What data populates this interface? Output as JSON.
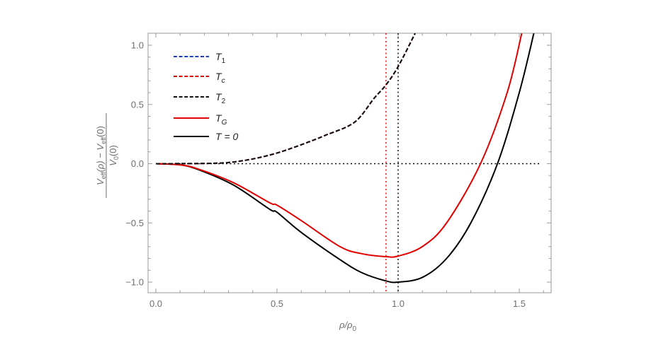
{
  "chart_data": {
    "type": "line",
    "title": "",
    "xlabel": "ρ/ρ0",
    "ylabel": "(V_eff(ρ) − V_eff(0)) / V_0(0)",
    "xlim": [
      -0.03,
      1.63
    ],
    "ylim": [
      -1.09,
      1.1
    ],
    "x_ticks": [
      0.0,
      0.5,
      1.0,
      1.5
    ],
    "x_tick_labels": [
      "0.0",
      "0.5",
      "1.0",
      "1.5"
    ],
    "y_ticks": [
      -1.0,
      -0.5,
      0.0,
      0.5,
      1.0
    ],
    "y_tick_labels": [
      "−1.0",
      "−0.5",
      "0.0",
      "0.5",
      "1.0"
    ],
    "grid": false,
    "legend_position": "upper-left",
    "series": [
      {
        "name": "T1",
        "label_main": "T",
        "label_sub": "1",
        "color": "#1f3fcf",
        "style": "dashed",
        "x": [
          0,
          0.2,
          0.3,
          0.4,
          0.5,
          0.6,
          0.7,
          0.82,
          0.9,
          0.95,
          1.0,
          1.07
        ],
        "y": [
          0,
          0.002,
          0.01,
          0.04,
          0.09,
          0.16,
          0.24,
          0.35,
          0.55,
          0.666,
          0.82,
          1.1
        ]
      },
      {
        "name": "Tc",
        "label_main": "T",
        "label_sub": "c",
        "color": "#d40000",
        "style": "dashed",
        "x": [
          0,
          0.2,
          0.3,
          0.4,
          0.5,
          0.6,
          0.7,
          0.82,
          0.9,
          0.95,
          1.0,
          1.07
        ],
        "y": [
          0,
          0.002,
          0.01,
          0.04,
          0.09,
          0.16,
          0.24,
          0.35,
          0.55,
          0.666,
          0.82,
          1.1
        ]
      },
      {
        "name": "T2",
        "label_main": "T",
        "label_sub": "2",
        "color": "#111111",
        "style": "dashed",
        "x": [
          0,
          0.2,
          0.3,
          0.4,
          0.5,
          0.6,
          0.7,
          0.82,
          0.9,
          0.95,
          1.0,
          1.07
        ],
        "y": [
          0,
          0.002,
          0.01,
          0.04,
          0.09,
          0.16,
          0.24,
          0.35,
          0.55,
          0.666,
          0.82,
          1.1
        ]
      },
      {
        "name": "TG",
        "label_main": "T",
        "label_sub": "G",
        "color": "#e00000",
        "style": "solid",
        "x": [
          0,
          0.1,
          0.175,
          0.32,
          0.47,
          0.5,
          0.6,
          0.76,
          0.85,
          0.95,
          1.0,
          1.1,
          1.2,
          1.34,
          1.45,
          1.51
        ],
        "y": [
          0,
          -0.01,
          -0.045,
          -0.16,
          -0.33,
          -0.35,
          -0.48,
          -0.7,
          -0.76,
          -0.785,
          -0.78,
          -0.7,
          -0.5,
          0,
          0.6,
          1.1
        ]
      },
      {
        "name": "T = 0",
        "label_main": "T = 0",
        "label_sub": "",
        "color": "#000000",
        "style": "solid",
        "x": [
          0,
          0.1,
          0.175,
          0.32,
          0.47,
          0.5,
          0.6,
          0.76,
          0.85,
          0.95,
          1.0,
          1.1,
          1.2,
          1.3,
          1.41,
          1.5,
          1.56
        ],
        "y": [
          0,
          -0.01,
          -0.05,
          -0.18,
          -0.385,
          -0.41,
          -0.58,
          -0.81,
          -0.92,
          -0.99,
          -1.0,
          -0.96,
          -0.8,
          -0.5,
          0,
          0.6,
          1.1
        ]
      }
    ],
    "reference_lines": [
      {
        "orientation": "horizontal",
        "value": 0.0,
        "from": 0.0,
        "to": 1.59,
        "color": "#000000",
        "style": "dotted"
      },
      {
        "orientation": "vertical",
        "value": 0.95,
        "color": "#e00000",
        "style": "dotted"
      },
      {
        "orientation": "vertical",
        "value": 1.0,
        "color": "#000000",
        "style": "dotted"
      }
    ]
  },
  "labels": {
    "x_axis": {
      "main": "ρ/ρ",
      "sub": "0"
    },
    "y_axis": {
      "numerator": "V",
      "numerator_sub1": "eff",
      "numerator_mid": "(ρ) − V",
      "numerator_sub2": "eff",
      "numerator_end": "(0)",
      "denominator": "V",
      "denominator_sub": "0",
      "denominator_end": "(0)"
    }
  }
}
